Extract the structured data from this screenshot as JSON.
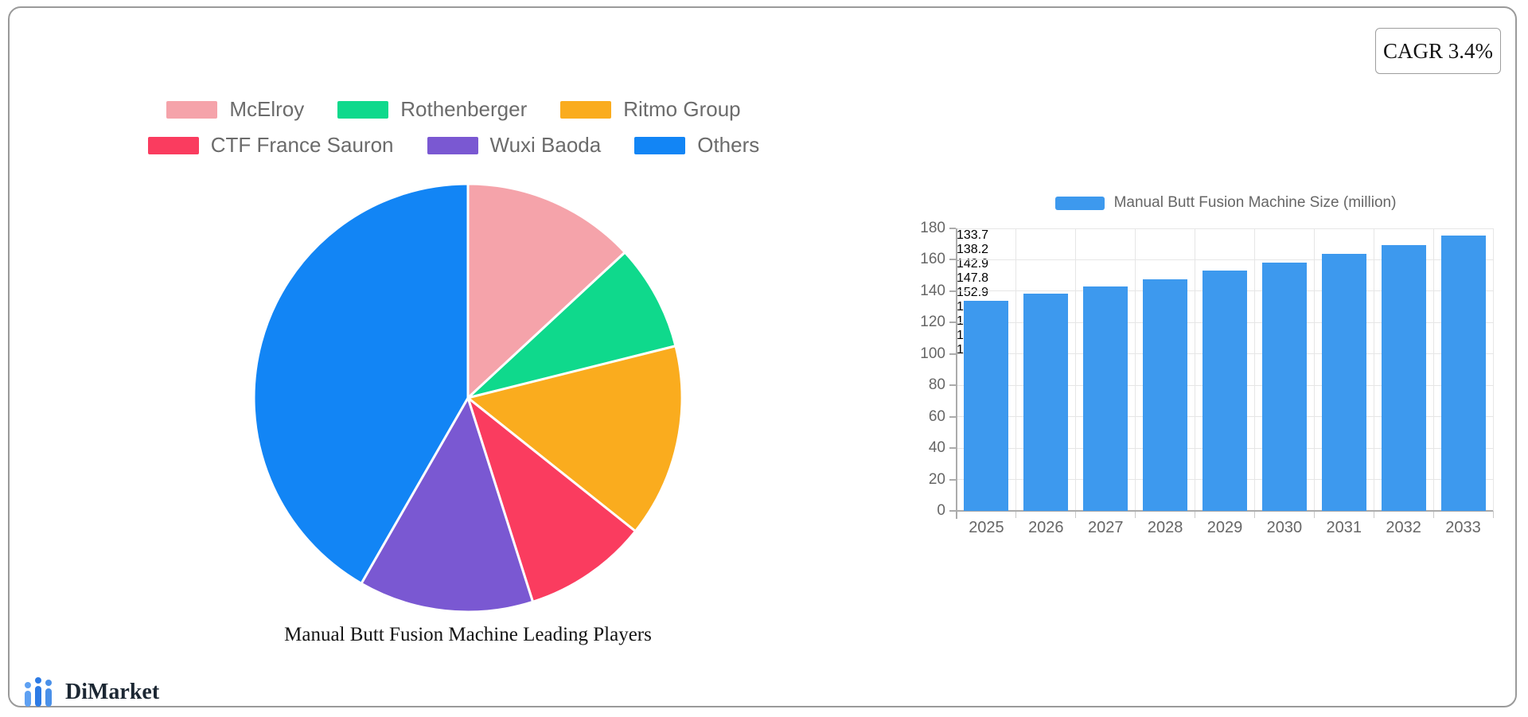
{
  "cagr_badge": {
    "label": "CAGR 3.4%"
  },
  "brand": {
    "name": "DiMarket",
    "icon": "chart-bars-icon",
    "icon_colors": [
      "#5ea0f2",
      "#2d7be5",
      "#4a90e8"
    ]
  },
  "colors": {
    "bar_blue": "#3d99ee",
    "legend_text": "#6b6b6b",
    "axis_text": "#666666",
    "grid_line": "#e6e6e6",
    "axis_line": "#ababab",
    "card_border": "#9a9a9a"
  },
  "chart_data": [
    {
      "type": "pie",
      "title": "Manual Butt Fusion Machine Leading Players",
      "labels": [
        "McElroy",
        "Rothenberger",
        "Ritmo Group",
        "CTF France Sauron",
        "Wuxi Baoda",
        "Others"
      ],
      "values": [
        13.1,
        8.0,
        14.6,
        9.4,
        13.2,
        41.7
      ],
      "values_note": "slice shares in percent, estimated from pixel angles; no numeric labels shown in image",
      "colors": [
        "#f5a3aa",
        "#0fd98c",
        "#faac1e",
        "#fa3c5f",
        "#7a58d2",
        "#1285f5"
      ],
      "start_angle_deg_from_top": 0,
      "direction": "clockwise",
      "slice_border_color": "#ffffff",
      "legend_position": "top",
      "legend_rows": [
        [
          0,
          1,
          2
        ],
        [
          3,
          4,
          5
        ]
      ]
    },
    {
      "type": "bar",
      "series_label": "Manual Butt Fusion Machine Size (million)",
      "categories": [
        "2025",
        "2026",
        "2027",
        "2028",
        "2029",
        "2030",
        "2031",
        "2032",
        "2033"
      ],
      "values": [
        133.7,
        138.2,
        142.9,
        147.8,
        152.9,
        158.2,
        163.7,
        169.4,
        175.3
      ],
      "ylim": [
        0,
        180
      ],
      "ytick_step": 20,
      "bar_color": "#3d99ee",
      "grid": true,
      "legend_position": "top",
      "value_label_style": "white, centered inside bar"
    }
  ]
}
